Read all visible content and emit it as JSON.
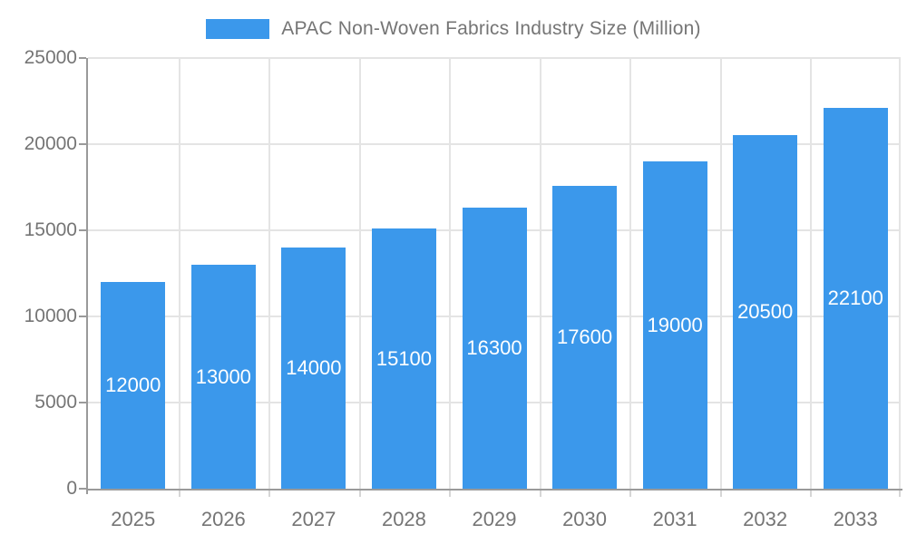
{
  "chart_data": {
    "type": "bar",
    "title": "APAC Non-Woven Fabrics Industry Size (Million)",
    "categories": [
      "2025",
      "2026",
      "2027",
      "2028",
      "2029",
      "2030",
      "2031",
      "2032",
      "2033"
    ],
    "values": [
      12000,
      13000,
      14000,
      15100,
      16300,
      17600,
      19000,
      20500,
      22100
    ],
    "value_labels": [
      "12000",
      "13000",
      "14000",
      "15100",
      "16300",
      "17600",
      "19000",
      "20500",
      "22100"
    ],
    "xlabel": "",
    "ylabel": "",
    "ylim": [
      0,
      25000
    ],
    "yticks": [
      0,
      5000,
      10000,
      15000,
      20000,
      25000
    ],
    "ytick_labels": [
      "0",
      "5000",
      "10000",
      "15000",
      "20000",
      "25000"
    ],
    "grid": "on",
    "legend_position": "top-center",
    "bar_color": "#3b98eb",
    "bar_label_color": "#ffffff",
    "axis_color": "#9a9a9a",
    "gridline_color": "#e4e4e4",
    "tick_label_color": "#757575"
  }
}
